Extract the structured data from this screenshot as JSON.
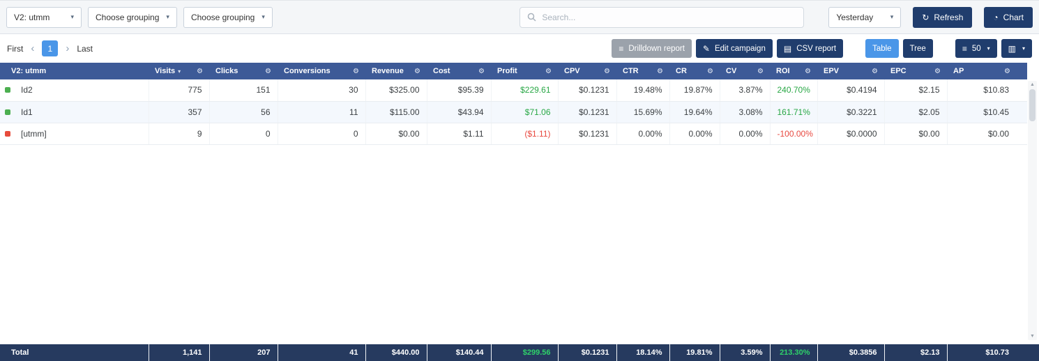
{
  "toolbar": {
    "campaign_select": "V2: utmm",
    "grouping_select_1": "Choose grouping",
    "grouping_select_2": "Choose grouping",
    "search_placeholder": "Search...",
    "date_range_select": "Yesterday",
    "refresh_label": "Refresh",
    "chart_label": "Chart"
  },
  "pagination": {
    "first_label": "First",
    "current_page": "1",
    "last_label": "Last"
  },
  "actions": {
    "drilldown_label": "Drilldown report",
    "edit_campaign_label": "Edit campaign",
    "csv_report_label": "CSV report",
    "table_label": "Table",
    "tree_label": "Tree",
    "page_size": "50"
  },
  "icons": {
    "caret_down": "▾",
    "chevron_left": "‹",
    "chevron_right": "›",
    "refresh": "↻",
    "chart": "◔",
    "list": "≡",
    "edit": "✎",
    "csv": "▤",
    "rows": "≡",
    "columns": "▥",
    "gear": "⚙",
    "sort_desc": "▾"
  },
  "table": {
    "columns": [
      {
        "label": "V2: utmm",
        "gear": false,
        "sort": false
      },
      {
        "label": "Visits",
        "gear": true,
        "sort": true
      },
      {
        "label": "Clicks",
        "gear": true,
        "sort": false
      },
      {
        "label": "Conversions",
        "gear": true,
        "sort": false
      },
      {
        "label": "Revenue",
        "gear": true,
        "sort": false
      },
      {
        "label": "Cost",
        "gear": true,
        "sort": false
      },
      {
        "label": "Profit",
        "gear": true,
        "sort": false
      },
      {
        "label": "CPV",
        "gear": true,
        "sort": false
      },
      {
        "label": "CTR",
        "gear": true,
        "sort": false
      },
      {
        "label": "CR",
        "gear": true,
        "sort": false
      },
      {
        "label": "CV",
        "gear": true,
        "sort": false
      },
      {
        "label": "ROI",
        "gear": true,
        "sort": false
      },
      {
        "label": "EPV",
        "gear": true,
        "sort": false
      },
      {
        "label": "EPC",
        "gear": true,
        "sort": false
      },
      {
        "label": "AP",
        "gear": true,
        "sort": false
      }
    ],
    "rows": [
      {
        "name": "Id2",
        "accent": "positive",
        "values": [
          "775",
          "151",
          "30",
          "$325.00",
          "$95.39",
          "$229.61",
          "$0.1231",
          "19.48%",
          "19.87%",
          "3.87%",
          "240.70%",
          "$0.4194",
          "$2.15",
          "$10.83"
        ]
      },
      {
        "name": "Id1",
        "accent": "positive",
        "values": [
          "357",
          "56",
          "11",
          "$115.00",
          "$43.94",
          "$71.06",
          "$0.1231",
          "15.69%",
          "19.64%",
          "3.08%",
          "161.71%",
          "$0.3221",
          "$2.05",
          "$10.45"
        ]
      },
      {
        "name": "[utmm]",
        "accent": "negative",
        "values": [
          "9",
          "0",
          "0",
          "$0.00",
          "$1.11",
          "($1.11)",
          "$0.1231",
          "0.00%",
          "0.00%",
          "0.00%",
          "-100.00%",
          "$0.0000",
          "$0.00",
          "$0.00"
        ]
      }
    ],
    "total": {
      "name": "Total",
      "values": [
        "1,141",
        "207",
        "41",
        "$440.00",
        "$140.44",
        "$299.56",
        "$0.1231",
        "18.14%",
        "19.81%",
        "3.59%",
        "213.30%",
        "$0.3856",
        "$2.13",
        "$10.73"
      ]
    }
  },
  "colors": {
    "positive": "#28a745",
    "negative": "#e8483f",
    "total_positive": "#2fd26a",
    "indicator_green": "#4caf50",
    "indicator_red": "#e74c3c"
  }
}
